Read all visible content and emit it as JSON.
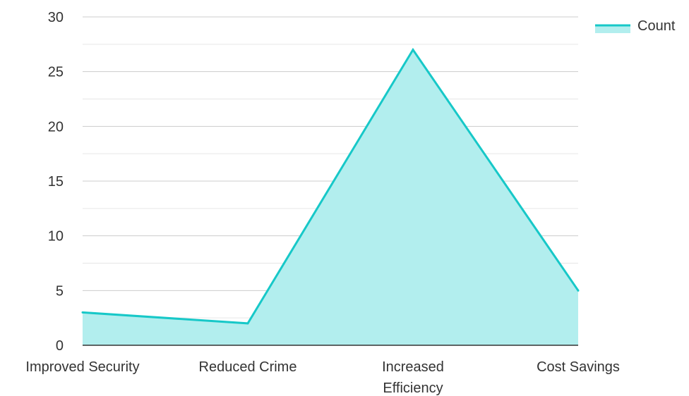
{
  "chart_data": {
    "type": "area",
    "categories": [
      "Improved Security",
      "Reduced Crime",
      "Increased Efficiency",
      "Cost Savings"
    ],
    "series": [
      {
        "name": "Count",
        "values": [
          3,
          2,
          27,
          5
        ]
      }
    ],
    "ylim": [
      0,
      30
    ],
    "yticks": [
      0,
      5,
      10,
      15,
      20,
      25,
      30
    ],
    "grid": true,
    "legend": "top-right",
    "colors": {
      "line": "#17c8c8",
      "fill": "#b2eeee",
      "grid": "#cccccc",
      "grid_minor": "#e6e6e6",
      "axis": "#333333"
    }
  }
}
